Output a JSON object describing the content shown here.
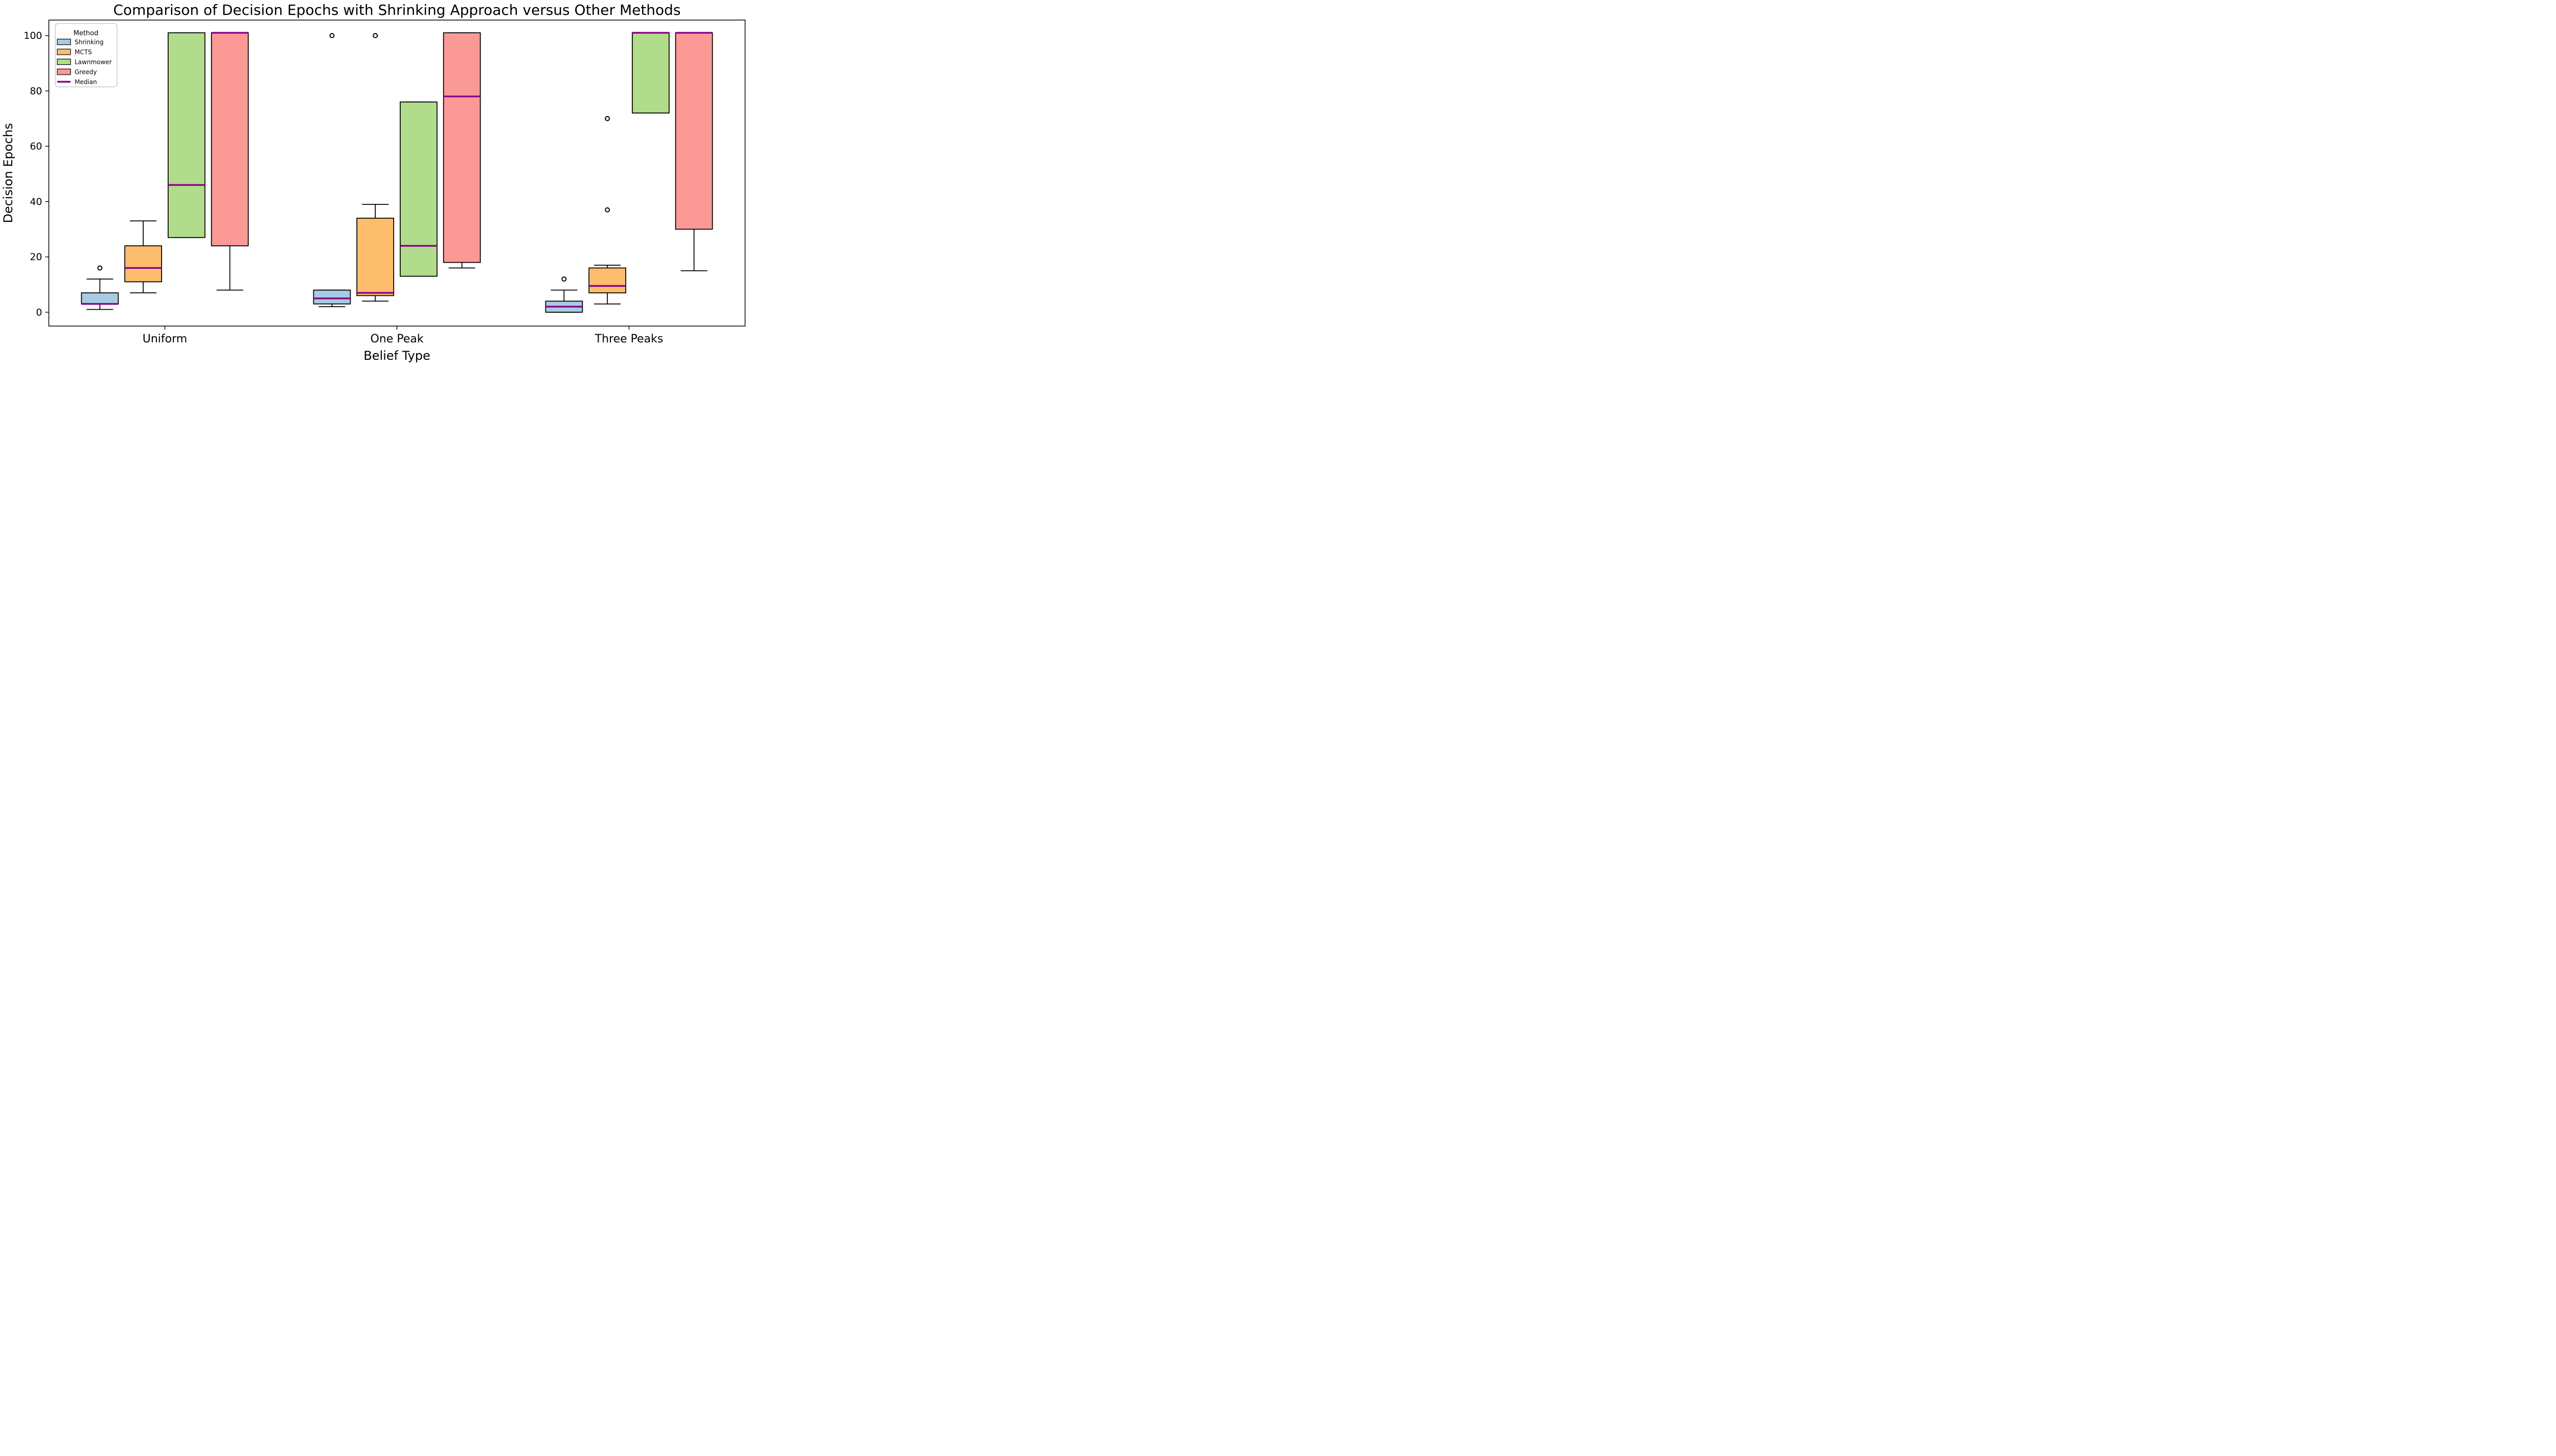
{
  "chart_data": {
    "type": "boxplot",
    "title": "Comparison of Decision Epochs with Shrinking Approach versus Other Methods",
    "xlabel": "Belief Type",
    "ylabel": "Decision Epochs",
    "categories": [
      "Uniform",
      "One Peak",
      "Three Peaks"
    ],
    "yticks": [
      0,
      20,
      40,
      60,
      80,
      100
    ],
    "ylim": [
      -5,
      105.6
    ],
    "grid": false,
    "legend": {
      "title": "Method",
      "median_label": "Median",
      "position": "upper-left"
    },
    "colors": {
      "box_edge": "#000000",
      "median": "#8b008b",
      "background": "#ffffff",
      "legend_border": "#cccccc"
    },
    "series": [
      {
        "name": "Shrinking",
        "color": "#a6cbe3",
        "boxes": [
          {
            "whislo": 1,
            "q1": 3,
            "med": 3,
            "q3": 7,
            "whishi": 12,
            "fliers": [
              16
            ]
          },
          {
            "whislo": 2,
            "q1": 3,
            "med": 5,
            "q3": 8,
            "whishi": 8,
            "fliers": [
              100
            ]
          },
          {
            "whislo": 0,
            "q1": 0,
            "med": 2,
            "q3": 4,
            "whishi": 8,
            "fliers": [
              12
            ]
          }
        ]
      },
      {
        "name": "MCTS",
        "color": "#fcbd6d",
        "boxes": [
          {
            "whislo": 7,
            "q1": 11,
            "med": 16,
            "q3": 24,
            "whishi": 33,
            "fliers": []
          },
          {
            "whislo": 4,
            "q1": 6,
            "med": 7,
            "q3": 34,
            "whishi": 39,
            "fliers": [
              100
            ]
          },
          {
            "whislo": 3,
            "q1": 7,
            "med": 9.5,
            "q3": 16,
            "whishi": 17,
            "fliers": [
              37,
              70
            ]
          }
        ]
      },
      {
        "name": "Lawnmower",
        "color": "#b1dc8b",
        "boxes": [
          {
            "whislo": 27,
            "q1": 27,
            "med": 46,
            "q3": 101,
            "whishi": 101,
            "fliers": []
          },
          {
            "whislo": 13,
            "q1": 13,
            "med": 24,
            "q3": 76,
            "whishi": 76,
            "fliers": []
          },
          {
            "whislo": 72,
            "q1": 72,
            "med": 101,
            "q3": 101,
            "whishi": 101,
            "fliers": []
          }
        ]
      },
      {
        "name": "Greedy",
        "color": "#fb9997",
        "boxes": [
          {
            "whislo": 8,
            "q1": 24,
            "med": 101,
            "q3": 101,
            "whishi": 101,
            "fliers": []
          },
          {
            "whislo": 16,
            "q1": 18,
            "med": 78,
            "q3": 101,
            "whishi": 101,
            "fliers": []
          },
          {
            "whislo": 15,
            "q1": 30,
            "med": 101,
            "q3": 101,
            "whishi": 101,
            "fliers": []
          }
        ]
      }
    ]
  }
}
